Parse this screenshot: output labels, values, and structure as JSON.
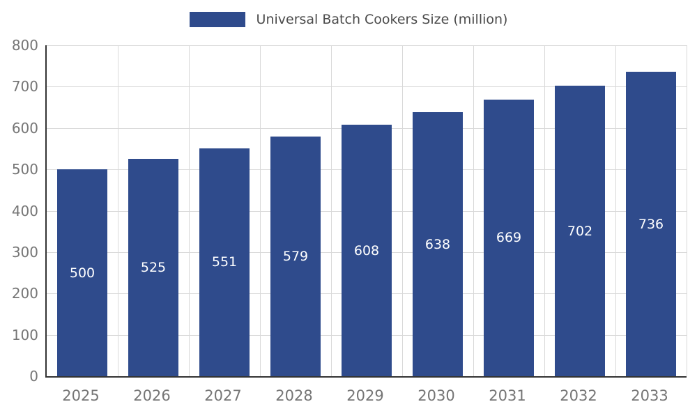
{
  "chart_data": {
    "type": "bar",
    "title": "Universal Batch Cookers Size (million)",
    "categories": [
      "2025",
      "2026",
      "2027",
      "2028",
      "2029",
      "2030",
      "2031",
      "2032",
      "2033"
    ],
    "values": [
      500,
      525,
      551,
      579,
      608,
      638,
      669,
      702,
      736
    ],
    "xlabel": "",
    "ylabel": "",
    "ylim": [
      0,
      800
    ],
    "yticks": [
      0,
      100,
      200,
      300,
      400,
      500,
      600,
      700,
      800
    ],
    "grid": "on",
    "legend_position": "top-center",
    "value_labels": "inside-middle",
    "colors": {
      "bar": "#2f4b8c",
      "grid": "#d9d9d9",
      "axis": "#333333",
      "tick_label": "#757575",
      "value_label": "#ffffff",
      "legend_label": "#4a4a4a",
      "background": "#ffffff"
    }
  }
}
